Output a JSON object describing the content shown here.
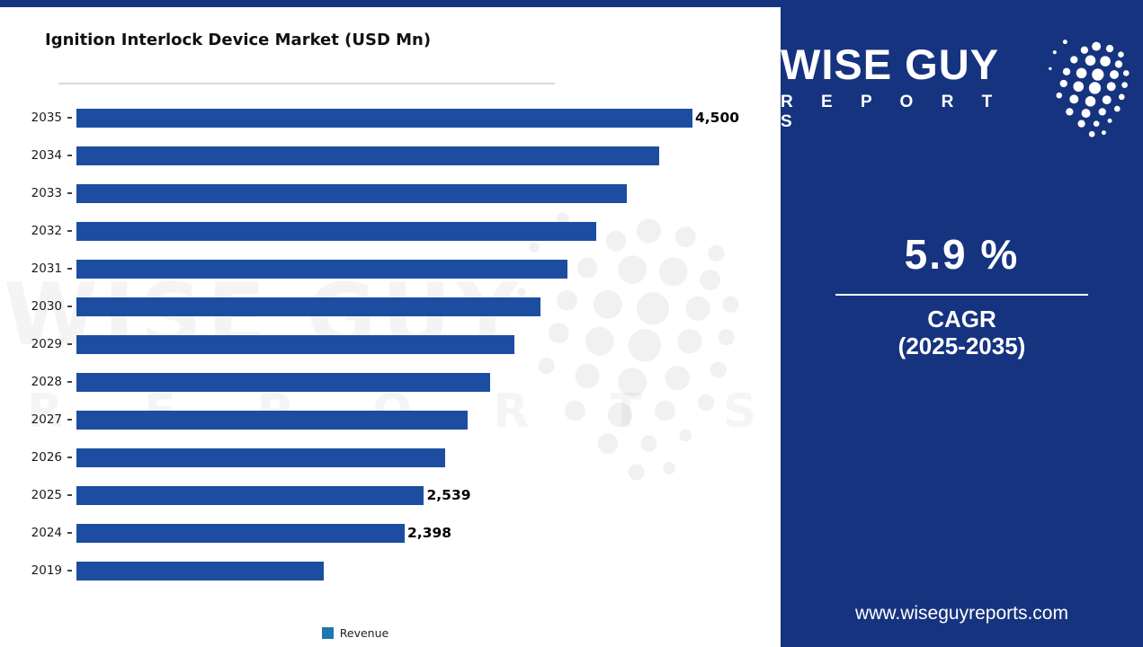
{
  "page": {
    "top_strip_color": "#16337f"
  },
  "chart": {
    "bar_color": "#1c4da1",
    "legend_color": "#2176ae",
    "legend_label": "Revenue"
  },
  "chart_data": {
    "type": "bar",
    "orientation": "horizontal",
    "title": "Ignition Interlock Device Market (USD Mn)",
    "xlabel": "",
    "ylabel": "",
    "categories": [
      "2035",
      "2034",
      "2033",
      "2032",
      "2031",
      "2030",
      "2029",
      "2028",
      "2027",
      "2026",
      "2025",
      "2024",
      "2019"
    ],
    "values": [
      4500,
      4260,
      4020,
      3800,
      3590,
      3390,
      3200,
      3020,
      2855,
      2695,
      2539,
      2398,
      1805
    ],
    "value_labels": {
      "2035": "4,500",
      "2025": "2,539",
      "2024": "2,398"
    },
    "xlim": [
      0,
      4500
    ],
    "grid": false,
    "legend": [
      "Revenue"
    ],
    "legend_position": "bottom"
  },
  "watermark": {
    "line1": "WISE GUY",
    "line2": "R E P O R T S"
  },
  "panel": {
    "bg_color": "#16337f",
    "logo_line1": "WISE GUY",
    "logo_line2": "R E P O R T S",
    "cagr_value": "5.9 %",
    "cagr_line1": "CAGR",
    "cagr_line2": "(2025-2035)",
    "website": "www.wiseguyreports.com"
  }
}
